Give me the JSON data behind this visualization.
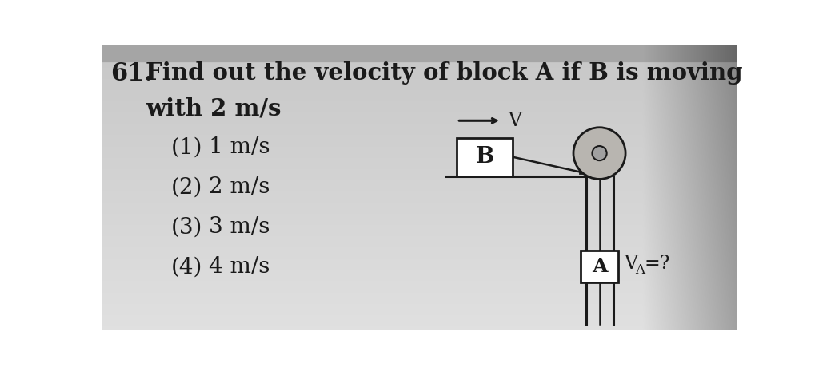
{
  "title_number": "61.",
  "title_text": "Find out the velocity of block A if B is moving",
  "title_text2": "with 2 m/s",
  "options": [
    {
      "num": "(1)",
      "val": "1 m/s"
    },
    {
      "num": "(2)",
      "val": "2 m/s"
    },
    {
      "num": "(3)",
      "val": "3 m/s"
    },
    {
      "num": "(4)",
      "val": "4 m/s"
    }
  ],
  "bg_color": "#d8d5d0",
  "paper_color": "#dddad5",
  "text_color": "#1a1a1a",
  "diagram": {
    "arrow_label": "V",
    "block_B_label": "B",
    "block_A_label": "A",
    "block_A_annotation": "V",
    "block_A_annotation2": "A",
    "block_A_annotation3": "=?"
  }
}
